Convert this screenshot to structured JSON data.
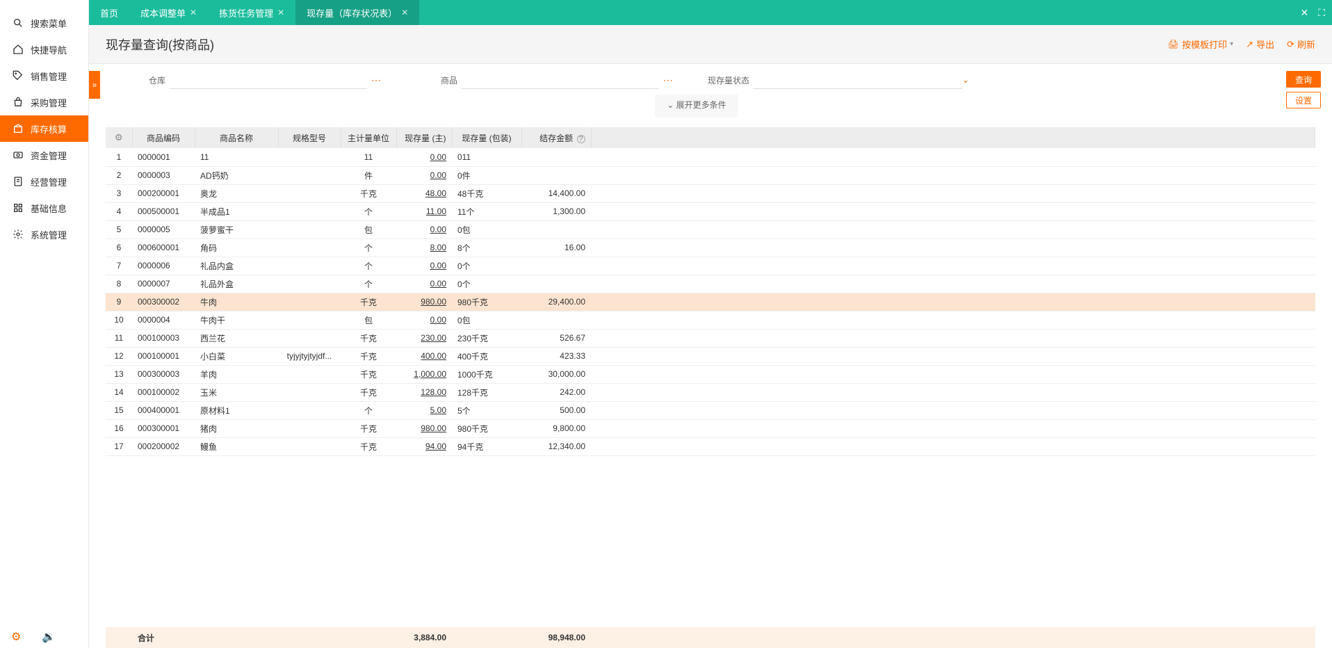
{
  "sidebar": {
    "items": [
      {
        "label": "搜索菜单",
        "icon": "search"
      },
      {
        "label": "快捷导航",
        "icon": "home"
      },
      {
        "label": "销售管理",
        "icon": "tag"
      },
      {
        "label": "采购管理",
        "icon": "bag"
      },
      {
        "label": "库存核算",
        "icon": "house",
        "active": true
      },
      {
        "label": "资金管理",
        "icon": "money"
      },
      {
        "label": "经营管理",
        "icon": "clip"
      },
      {
        "label": "基础信息",
        "icon": "grid"
      },
      {
        "label": "系统管理",
        "icon": "gear"
      }
    ]
  },
  "tabs": [
    {
      "label": "首页",
      "closable": false
    },
    {
      "label": "成本调整单",
      "closable": true
    },
    {
      "label": "拣货任务管理",
      "closable": true
    },
    {
      "label": "现存量（库存状况表）",
      "closable": true,
      "active": true
    }
  ],
  "page": {
    "title": "现存量查询(按商品)",
    "actions": {
      "print": "按模板打印",
      "export": "导出",
      "refresh": "刷新"
    }
  },
  "filter": {
    "warehouse_label": "仓库",
    "product_label": "商品",
    "status_label": "现存量状态",
    "query_btn": "查询",
    "settings_btn": "设置",
    "expand": "展开更多条件"
  },
  "table": {
    "columns": {
      "idx": "",
      "code": "商品编码",
      "name": "商品名称",
      "spec": "规格型号",
      "unit": "主计量单位",
      "qty": "现存量 (主)",
      "pack": "现存量 (包装)",
      "amt": "结存金额"
    },
    "rows": [
      {
        "idx": 1,
        "code": "0000001",
        "name": "11",
        "spec": "",
        "unit": "11",
        "qty": "0.00",
        "pack": "011",
        "amt": ""
      },
      {
        "idx": 2,
        "code": "0000003",
        "name": "AD钙奶",
        "spec": "",
        "unit": "件",
        "qty": "0.00",
        "pack": "0件",
        "amt": ""
      },
      {
        "idx": 3,
        "code": "000200001",
        "name": "奥龙",
        "spec": "",
        "unit": "千克",
        "qty": "48.00",
        "pack": "48千克",
        "amt": "14,400.00"
      },
      {
        "idx": 4,
        "code": "000500001",
        "name": "半成品1",
        "spec": "",
        "unit": "个",
        "qty": "11.00",
        "pack": "11个",
        "amt": "1,300.00"
      },
      {
        "idx": 5,
        "code": "0000005",
        "name": "菠萝蜜干",
        "spec": "",
        "unit": "包",
        "qty": "0.00",
        "pack": "0包",
        "amt": ""
      },
      {
        "idx": 6,
        "code": "000600001",
        "name": "角码",
        "spec": "",
        "unit": "个",
        "qty": "8.00",
        "pack": "8个",
        "amt": "16.00"
      },
      {
        "idx": 7,
        "code": "0000006",
        "name": "礼品内盒",
        "spec": "",
        "unit": "个",
        "qty": "0.00",
        "pack": "0个",
        "amt": ""
      },
      {
        "idx": 8,
        "code": "0000007",
        "name": "礼品外盒",
        "spec": "",
        "unit": "个",
        "qty": "0.00",
        "pack": "0个",
        "amt": ""
      },
      {
        "idx": 9,
        "code": "000300002",
        "name": "牛肉",
        "spec": "",
        "unit": "千克",
        "qty": "980.00",
        "pack": "980千克",
        "amt": "29,400.00",
        "hl": true
      },
      {
        "idx": 10,
        "code": "0000004",
        "name": "牛肉干",
        "spec": "",
        "unit": "包",
        "qty": "0.00",
        "pack": "0包",
        "amt": ""
      },
      {
        "idx": 11,
        "code": "000100003",
        "name": "西兰花",
        "spec": "",
        "unit": "千克",
        "qty": "230.00",
        "pack": "230千克",
        "amt": "526.67"
      },
      {
        "idx": 12,
        "code": "000100001",
        "name": "小白菜",
        "spec": "tyjyjtyjtyjdf...",
        "unit": "千克",
        "qty": "400.00",
        "pack": "400千克",
        "amt": "423.33"
      },
      {
        "idx": 13,
        "code": "000300003",
        "name": "羊肉",
        "spec": "",
        "unit": "千克",
        "qty": "1,000.00",
        "pack": "1000千克",
        "amt": "30,000.00"
      },
      {
        "idx": 14,
        "code": "000100002",
        "name": "玉米",
        "spec": "",
        "unit": "千克",
        "qty": "128.00",
        "pack": "128千克",
        "amt": "242.00"
      },
      {
        "idx": 15,
        "code": "000400001",
        "name": "原材料1",
        "spec": "",
        "unit": "个",
        "qty": "5.00",
        "pack": "5个",
        "amt": "500.00"
      },
      {
        "idx": 16,
        "code": "000300001",
        "name": "猪肉",
        "spec": "",
        "unit": "千克",
        "qty": "980.00",
        "pack": "980千克",
        "amt": "9,800.00"
      },
      {
        "idx": 17,
        "code": "000200002",
        "name": "鳗鱼",
        "spec": "",
        "unit": "千克",
        "qty": "94.00",
        "pack": "94千克",
        "amt": "12,340.00"
      }
    ],
    "total": {
      "label": "合计",
      "qty": "3,884.00",
      "amt": "98,948.00"
    }
  },
  "colors": {
    "accent": "#ff6a00",
    "teal": "#1abc9c",
    "teal_active": "#16a085",
    "row_hl": "#fde4d0",
    "total_bg": "#fdf1e6"
  }
}
